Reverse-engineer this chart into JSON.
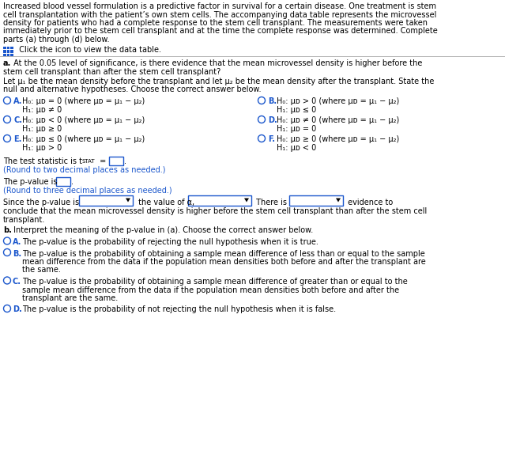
{
  "bg_color": "#ffffff",
  "text_color": "#000000",
  "blue_color": "#1a56cc",
  "para1_lines": [
    "Increased blood vessel formulation is a predictive factor in survival for a certain disease. One treatment is stem",
    "cell transplantation with the patient’s own stem cells. The accompanying data table represents the microvessel",
    "density for patients who had a complete response to the stem cell transplant. The measurements were taken",
    "immediately prior to the stem cell transplant and at the time the complete response was determined. Complete",
    "parts (a) through (d) below."
  ],
  "click_text": "  Click the icon to view the data table.",
  "part_a_line1": "a. At the 0.05 level of significance, is there evidence that the mean microvessel density is higher before the",
  "part_a_line2": "stem cell transplant than after the stem cell transplant?",
  "let_line1": "Let μ₁ be the mean density before the transplant and let μ₂ be the mean density after the transplant. State the",
  "let_line2": "null and alternative hypotheses. Choose the correct answer below.",
  "options_left": [
    {
      "label": "A.",
      "h0": "H₀: μᴅ = 0 (where μᴅ = μ₁ − μ₂)",
      "h1": "H₁: μᴅ ≠ 0"
    },
    {
      "label": "C.",
      "h0": "H₀: μᴅ < 0 (where μᴅ = μ₁ − μ₂)",
      "h1": "H₁: μᴅ ≥ 0"
    },
    {
      "label": "E.",
      "h0": "H₀: μᴅ ≤ 0 (where μᴅ = μ₁ − μ₂)",
      "h1": "H₁: μᴅ > 0"
    }
  ],
  "options_right": [
    {
      "label": "B.",
      "h0": "H₀: μᴅ > 0 (where μᴅ = μ₁ − μ₂)",
      "h1": "H₁: μᴅ ≤ 0"
    },
    {
      "label": "D.",
      "h0": "H₀: μᴅ ≠ 0 (where μᴅ = μ₁ − μ₂)",
      "h1": "H₁: μᴅ = 0"
    },
    {
      "label": "F.",
      "h0": "H₀: μᴅ ≥ 0 (where μᴅ = μ₁ − μ₂)",
      "h1": "H₁: μᴅ < 0"
    }
  ],
  "tstat_note": "(Round to two decimal places as needed.)",
  "pval_note": "(Round to three decimal places as needed.)",
  "conclude_line1": "conclude that the mean microvessel density is higher before the stem cell transplant than after the stem cell",
  "conclude_line2": "transplant.",
  "part_b_header": "b. Interpret the meaning of the p-value in (a). Choose the correct answer below.",
  "b_options": [
    {
      "label": "A.",
      "lines": [
        "The p-value is the probability of rejecting the null hypothesis when it is true."
      ]
    },
    {
      "label": "B.",
      "lines": [
        "The p-value is the probability of obtaining a sample mean difference of less than or equal to the sample",
        "mean difference from the data if the population mean densities both before and after the transplant are",
        "the same."
      ]
    },
    {
      "label": "C.",
      "lines": [
        "The p-value is the probability of obtaining a sample mean difference of greater than or equal to the",
        "sample mean difference from the data if the population mean densities both before and after the",
        "transplant are the same."
      ]
    },
    {
      "label": "D.",
      "lines": [
        "The p-value is the probability of not rejecting the null hypothesis when it is false."
      ]
    }
  ]
}
